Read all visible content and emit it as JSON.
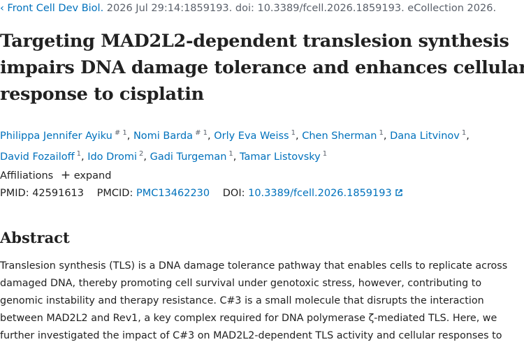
{
  "citation": {
    "journal": "Front Cell Dev Biol.",
    "details": "2026 Jul 29:14:1859193. doi: 10.3389/fcell.2026.1859193. eCollection 2026."
  },
  "title_lines": [
    "Targeting MAD2L2-dependent translesion synthesis",
    "impairs DNA damage tolerance and enhances cellular",
    "response to cisplatin"
  ],
  "authors": [
    {
      "name": "Philippa Jennifer Ayiku",
      "sup": "# 1"
    },
    {
      "name": "Nomi Barda",
      "sup": "# 1"
    },
    {
      "name": "Orly Eva Weiss",
      "sup": "1"
    },
    {
      "name": "Chen Sherman",
      "sup": "1"
    },
    {
      "name": "Dana Litvinov",
      "sup": "1"
    },
    {
      "name": "David Fozailoff",
      "sup": "1"
    },
    {
      "name": "Ido Dromi",
      "sup": "2"
    },
    {
      "name": "Gadi Turgeman",
      "sup": "1"
    },
    {
      "name": "Tamar Listovsky",
      "sup": "1"
    }
  ],
  "author_separator": ",",
  "affiliations": {
    "label": "Affiliations",
    "toggle": "expand"
  },
  "ids": {
    "pmid_label": "PMID:",
    "pmid": "42591613",
    "pmcid_label": "PMCID:",
    "pmcid": "PMC13462230",
    "doi_label": "DOI:",
    "doi": "10.3389/fcell.2026.1859193"
  },
  "abstract": {
    "heading": "Abstract",
    "lines": [
      "Translesion synthesis (TLS) is a DNA damage tolerance pathway that enables cells to replicate across",
      "damaged DNA, thereby promoting cell survival under genotoxic stress, however, contributing to",
      "genomic instability and therapy resistance. C#3 is a small molecule that disrupts the interaction",
      "between MAD2L2 and Rev1, a key complex required for DNA polymerase ζ-mediated TLS. Here, we",
      "further investigated the impact of C#3 on MAD2L2-dependent TLS activity and cellular responses to"
    ]
  }
}
